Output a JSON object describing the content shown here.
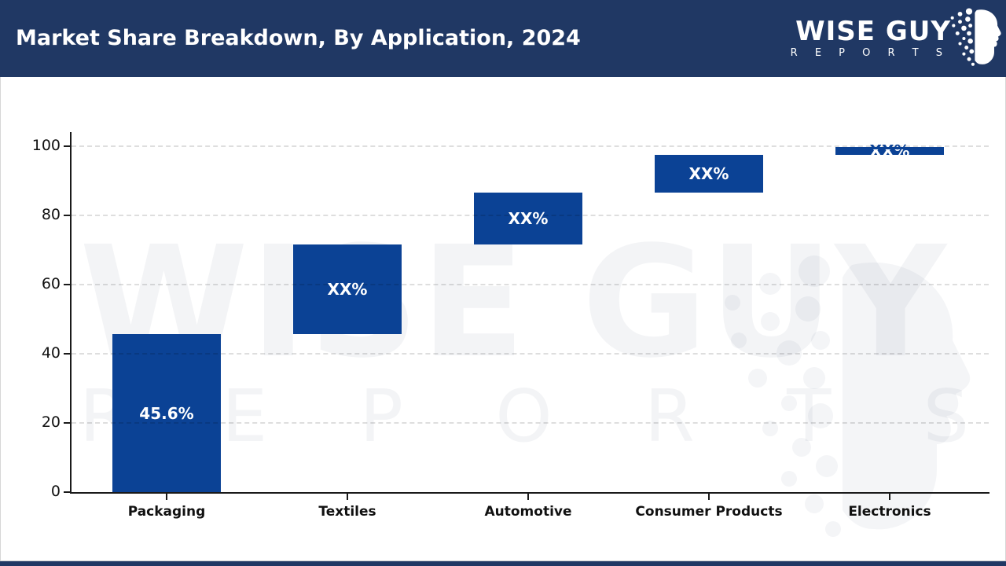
{
  "header": {
    "title": "Market Share Breakdown, By Application, 2024",
    "logo": {
      "line1": "WISE GUY",
      "line2": "R E P O R T S"
    }
  },
  "watermark": {
    "line1": "WISE GUY",
    "line2": "R E P O R T S"
  },
  "colors": {
    "header_bg": "#203864",
    "footer_bg": "#203864",
    "bar": "#0B4295",
    "bar_label": "#FFFFFF",
    "axis": "#1A1A1A",
    "grid": "rgba(0,0,0,0.13)"
  },
  "chart_data": {
    "type": "bar",
    "subtype": "waterfall",
    "title": "Market Share Breakdown, By Application, 2024",
    "xlabel": "",
    "ylabel": "",
    "categories": [
      "Packaging",
      "Textiles",
      "Automotive",
      "Consumer Products",
      "Electronics"
    ],
    "segments": [
      {
        "category": "Packaging",
        "start": 0,
        "end": 45.6,
        "approx_value": 45.6,
        "label": "45.6%"
      },
      {
        "category": "Textiles",
        "start": 45.6,
        "end": 71.5,
        "approx_value": 25.9,
        "label": "XX%"
      },
      {
        "category": "Automotive",
        "start": 71.5,
        "end": 86.6,
        "approx_value": 15.1,
        "label": "XX%"
      },
      {
        "category": "Consumer Products",
        "start": 86.6,
        "end": 97.4,
        "approx_value": 10.8,
        "label": "XX%"
      },
      {
        "category": "Electronics",
        "start": 97.4,
        "end": 99.8,
        "approx_value": 2.4,
        "label": "XX%"
      }
    ],
    "yticks": [
      0,
      20,
      40,
      60,
      80,
      100
    ],
    "ytick_labels": [
      "0",
      "20",
      "40",
      "60",
      "80",
      "100"
    ],
    "ylim": [
      0,
      105
    ],
    "grid": "dashed-horizontal",
    "legend": "none",
    "bar_color": "#0B4295"
  }
}
